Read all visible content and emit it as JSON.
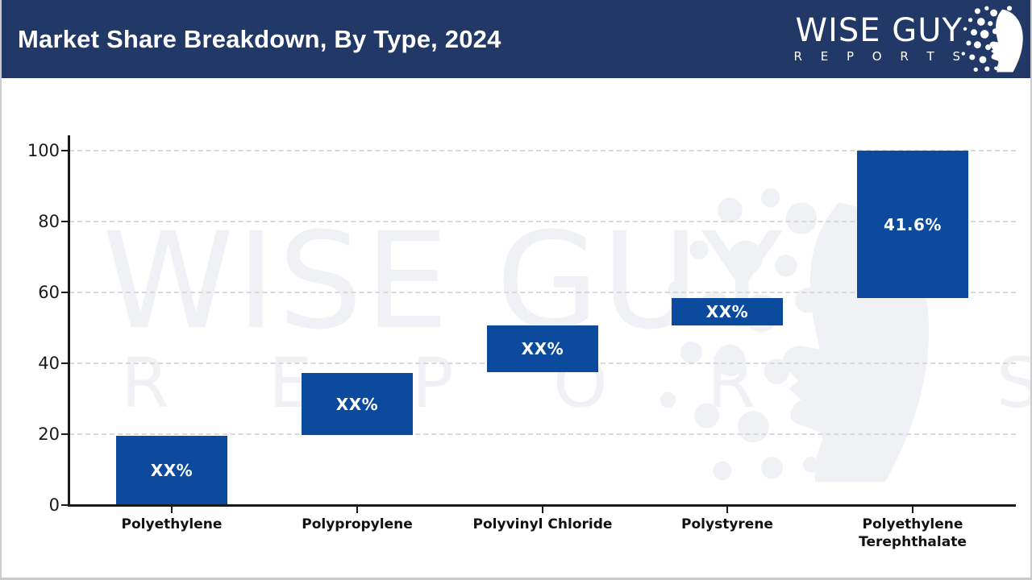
{
  "header": {
    "title": "Market Share Breakdown, By Type, 2024",
    "logo": {
      "line1": "WISE GUY",
      "line2": "R E P O R T S",
      "icon": "head-profile-dots-icon"
    }
  },
  "watermark": {
    "line1": "WISE GUY",
    "line2": "R E P O R T S",
    "icon": "head-profile-dots-watermark-icon"
  },
  "colors": {
    "header_bg": "#223866",
    "bar_fill": "#0c4a9e",
    "bar_label": "#ffffff",
    "gridline": "#d9d9d9",
    "axis": "#1a1a1a",
    "watermark": "#f0f1f4",
    "logo_fill": "#ffffff"
  },
  "chart_data": {
    "type": "bar",
    "subtype": "waterfall-floating-bars",
    "title": "Market Share Breakdown, By Type, 2024",
    "xlabel": "",
    "ylabel": "",
    "ylim": [
      0,
      104.3
    ],
    "yticks": [
      0,
      20,
      40,
      60,
      80,
      100
    ],
    "grid": "horizontal-dashed",
    "legend": "none",
    "categories": [
      "Polyethylene",
      "Polypropylene",
      "Polyvinyl Chloride",
      "Polystyrene",
      "Polyethylene Terephthalate"
    ],
    "bars": [
      {
        "category": "Polyethylene",
        "start": 0,
        "end": 19.5,
        "label": "XX%"
      },
      {
        "category": "Polypropylene",
        "start": 19.8,
        "end": 37.2,
        "label": "XX%"
      },
      {
        "category": "Polyvinyl Chloride",
        "start": 37.4,
        "end": 50.6,
        "label": "XX%"
      },
      {
        "category": "Polystyrene",
        "start": 50.6,
        "end": 58.4,
        "label": "XX%"
      },
      {
        "category": "Polyethylene Terephthalate",
        "start": 58.4,
        "end": 100,
        "label": "41.6%"
      }
    ]
  }
}
